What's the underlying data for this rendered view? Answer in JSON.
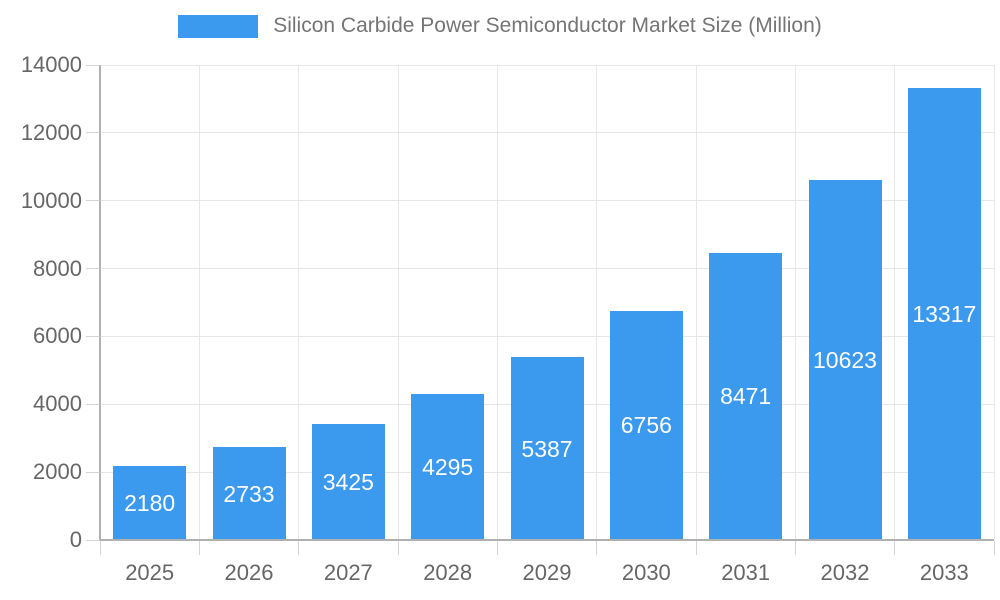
{
  "legend": {
    "label": "Silicon Carbide Power Semiconductor Market Size (Million)"
  },
  "chart_data": {
    "type": "bar",
    "title": "Silicon Carbide Power Semiconductor Market Size (Million)",
    "categories": [
      "2025",
      "2026",
      "2027",
      "2028",
      "2029",
      "2030",
      "2031",
      "2032",
      "2033"
    ],
    "values": [
      2180,
      2733,
      3425,
      4295,
      5387,
      6756,
      8471,
      10623,
      13317
    ],
    "yticks": [
      0,
      2000,
      4000,
      6000,
      8000,
      10000,
      12000,
      14000
    ],
    "ylim": [
      0,
      14000
    ],
    "xlabel": "",
    "ylabel": "",
    "grid": true,
    "legend_position": "top-center",
    "value_labels": "centered-inside-bars"
  },
  "colors": {
    "bar": "#3b99ee",
    "value_label": "#ffffff",
    "grid": "#e7e7e7",
    "tick": "#d4d4d4",
    "axis": "#b0b0b0",
    "axis_text": "#666666",
    "legend_text": "#757575",
    "background": "#ffffff"
  }
}
